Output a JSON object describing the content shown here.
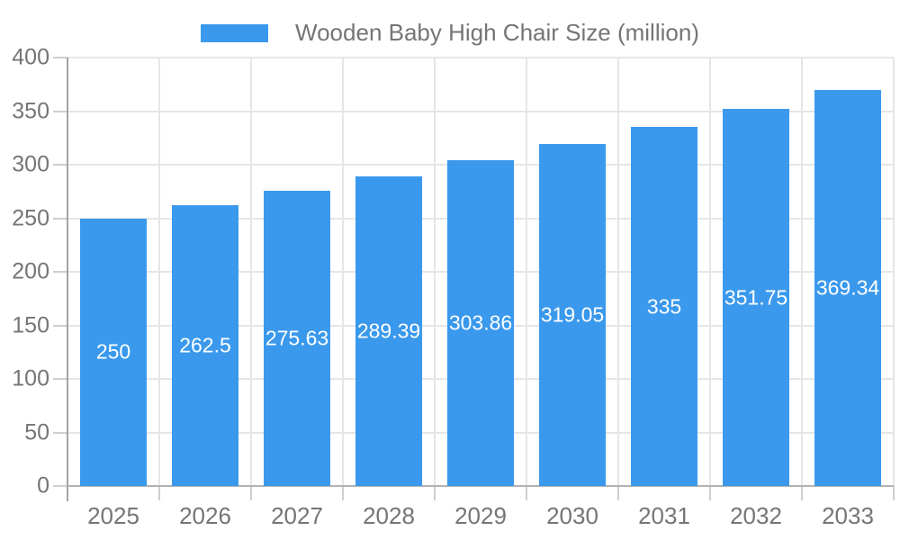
{
  "legend": {
    "label": "Wooden Baby High Chair Size (million)"
  },
  "colors": {
    "bar": "#3a99ec",
    "axis_text": "#757575",
    "grid": "#e6e6e6",
    "axis_line": "#a3a3a3",
    "tick": "#cfcfcf",
    "value_label": "#ffffff",
    "background": "#ffffff"
  },
  "chart_data": {
    "type": "bar",
    "title": "Wooden Baby High Chair Size (million)",
    "categories": [
      "2025",
      "2026",
      "2027",
      "2028",
      "2029",
      "2030",
      "2031",
      "2032",
      "2033"
    ],
    "values": [
      250,
      262.5,
      275.63,
      289.39,
      303.86,
      319.05,
      335,
      351.75,
      369.34
    ],
    "value_labels": [
      "250",
      "262.5",
      "275.63",
      "289.39",
      "303.86",
      "319.05",
      "335",
      "351.75",
      "369.34"
    ],
    "xlabel": "",
    "ylabel": "",
    "ylim": [
      0,
      400
    ],
    "ytick_step": 50,
    "ytick_labels": [
      "0",
      "50",
      "100",
      "150",
      "200",
      "250",
      "300",
      "350",
      "400"
    ],
    "grid": true,
    "legend_position": "top",
    "value_label_position": "center-of-bar"
  }
}
